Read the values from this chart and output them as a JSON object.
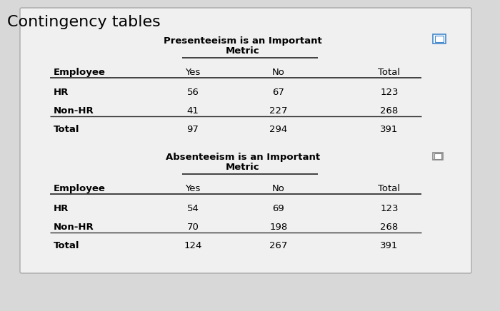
{
  "title": "Contingency tables",
  "table1_header_line1": "Presenteeism is an Important",
  "table1_header_line2": "Metric",
  "table2_header_line1": "Absenteeism is an Important",
  "table2_header_line2": "Metric",
  "col_headers": [
    "Employee",
    "Yes",
    "No",
    "Total"
  ],
  "table1_rows": [
    [
      "HR",
      "56",
      "67",
      "123"
    ],
    [
      "Non-HR",
      "41",
      "227",
      "268"
    ],
    [
      "Total",
      "97",
      "294",
      "391"
    ]
  ],
  "table2_rows": [
    [
      "HR",
      "54",
      "69",
      "123"
    ],
    [
      "Non-HR",
      "70",
      "198",
      "268"
    ],
    [
      "Total",
      "124",
      "267",
      "391"
    ]
  ],
  "bg_color": "#d8d8d8",
  "table_bg_color": "#f0f0f0",
  "title_fontsize": 16,
  "body_fontsize": 9.5,
  "header_fontsize": 9.5
}
